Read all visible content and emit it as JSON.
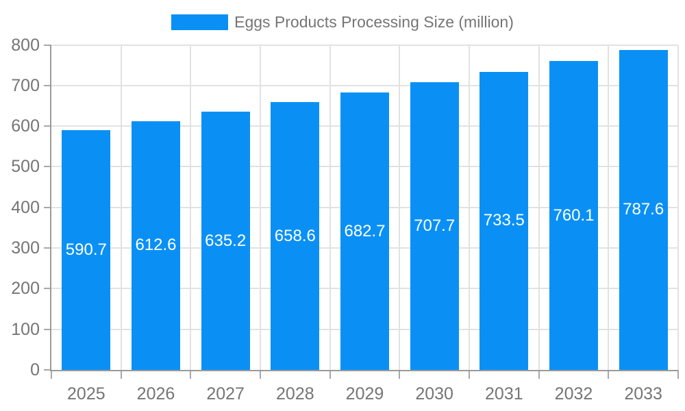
{
  "colors": {
    "bar": "#0a90f5",
    "axis": "#9a9a9a",
    "grid": "#e2e2e2",
    "tick": "#a8a8a8",
    "axis_text": "#757575",
    "bar_label_text": "#ffffff",
    "background": "#ffffff"
  },
  "legend": {
    "label": "Eggs Products Processing Size (million)"
  },
  "chart_data": {
    "type": "bar",
    "title": "Eggs Products Processing Size (million)",
    "legend_entries": [
      "Eggs Products Processing Size (million)"
    ],
    "legend_position": "top-center",
    "categories": [
      "2025",
      "2026",
      "2027",
      "2028",
      "2029",
      "2030",
      "2031",
      "2032",
      "2033"
    ],
    "values": [
      590.7,
      612.6,
      635.2,
      658.6,
      682.7,
      707.7,
      733.5,
      760.1,
      787.6
    ],
    "xlabel": "",
    "ylabel": "",
    "ylim": [
      0,
      800
    ],
    "yticks": [
      0,
      100,
      200,
      300,
      400,
      500,
      600,
      700,
      800
    ],
    "grid": true,
    "value_labels_inside_bars": true
  }
}
